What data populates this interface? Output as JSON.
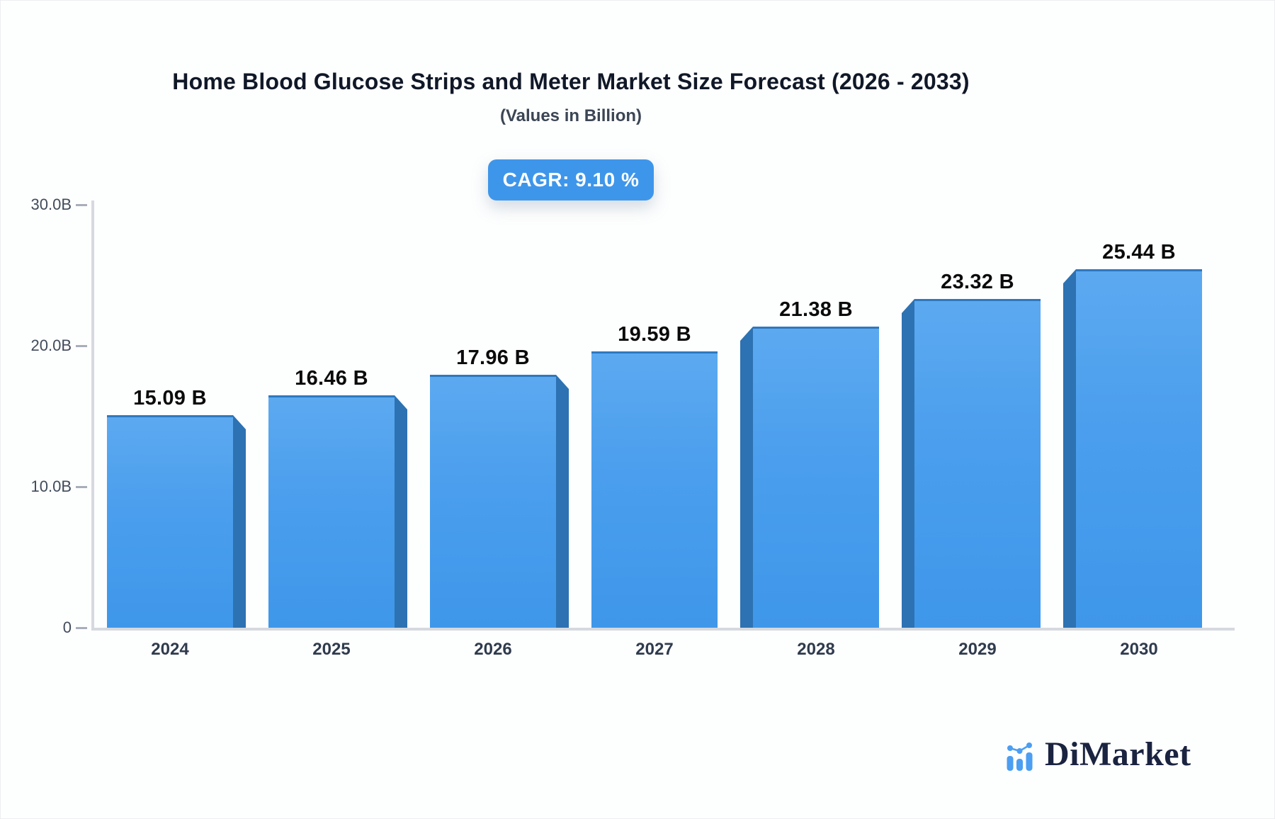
{
  "header": {
    "title": "Home Blood Glucose Strips and Meter Market Size Forecast (2026 - 2033)",
    "subtitle": "(Values in Billion)"
  },
  "badge": {
    "label": "CAGR: 9.10 %"
  },
  "chart_data": {
    "type": "bar",
    "title": "Home Blood Glucose Strips and Meter Market Size Forecast (2026 - 2033)",
    "subtitle": "(Values in Billion)",
    "categories": [
      "2024",
      "2025",
      "2026",
      "2027",
      "2028",
      "2029",
      "2030"
    ],
    "values": [
      15.09,
      16.46,
      17.96,
      19.59,
      21.38,
      23.32,
      25.44
    ],
    "labels": [
      "15.09 B",
      "16.46 B",
      "17.96 B",
      "19.59 B",
      "21.38 B",
      "23.32 B",
      "25.44 B"
    ],
    "xlabel": "",
    "ylabel": "",
    "ylim": [
      0,
      30
    ],
    "yticks": [
      "30.0B",
      "20.0B",
      "10.0B",
      "0"
    ],
    "grid": false,
    "legend": false,
    "cagr": "9.10 %"
  },
  "colors": {
    "bar_face_top": "#5ca9f0",
    "bar_face_bottom": "#3f97ea",
    "bar_top_edge": "#2e78c0",
    "bar_side": "#2d72b2",
    "badge_bg": "#3e96ea",
    "axis": "#d6d9de",
    "logo_navy": "#1a2340",
    "logo_blue": "#4b9ef2"
  },
  "logo": {
    "text": "DiMarket",
    "icon": "mini-bar-chart-icon"
  }
}
